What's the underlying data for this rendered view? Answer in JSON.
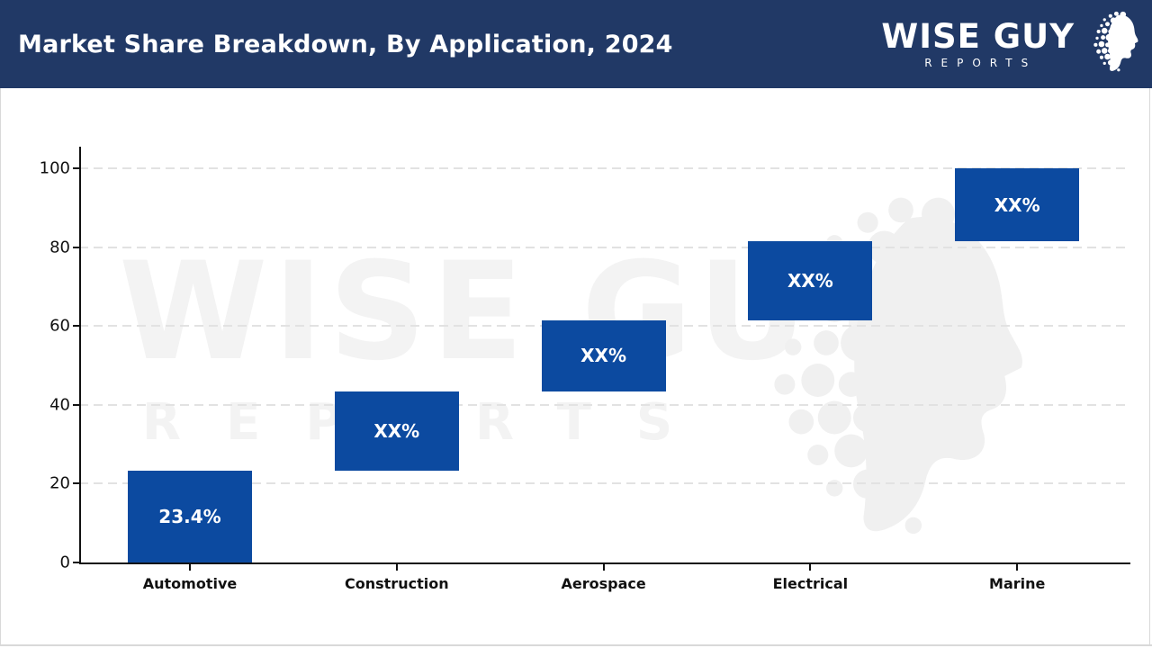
{
  "header": {
    "title": "Market Share Breakdown, By Application, 2024",
    "logo": {
      "line1": "WISE GUY",
      "line2": "REPORTS"
    }
  },
  "watermark": {
    "line1": "WISE GUY",
    "line2": "REPORTS"
  },
  "icons": {
    "face_logo": "dotted-head-profile"
  },
  "colors": {
    "header_bg": "#213966",
    "bar": "#0c4aa0",
    "grid": "#e2e2e2",
    "axis": "#111111",
    "watermark": "#f2f2f2"
  },
  "chart_data": {
    "type": "bar",
    "subtype": "waterfall",
    "title": "Market Share Breakdown, By Application, 2024",
    "categories": [
      "Automotive",
      "Construction",
      "Aerospace",
      "Electrical",
      "Marine"
    ],
    "segments": [
      {
        "category": "Automotive",
        "start": 0,
        "end": 23.4,
        "label": "23.4%"
      },
      {
        "category": "Construction",
        "start": 23.4,
        "end": 43.4,
        "label": "XX%"
      },
      {
        "category": "Aerospace",
        "start": 43.4,
        "end": 61.4,
        "label": "XX%"
      },
      {
        "category": "Electrical",
        "start": 61.4,
        "end": 81.4,
        "label": "XX%"
      },
      {
        "category": "Marine",
        "start": 81.4,
        "end": 100,
        "label": "XX%"
      }
    ],
    "y_ticks": [
      0,
      20,
      40,
      60,
      80,
      100
    ],
    "ylim": [
      0,
      105
    ],
    "xlabel": "",
    "ylabel": "",
    "grid": "dashed-horizontal",
    "legend": "none",
    "bar_color": "#0c4aa0"
  }
}
